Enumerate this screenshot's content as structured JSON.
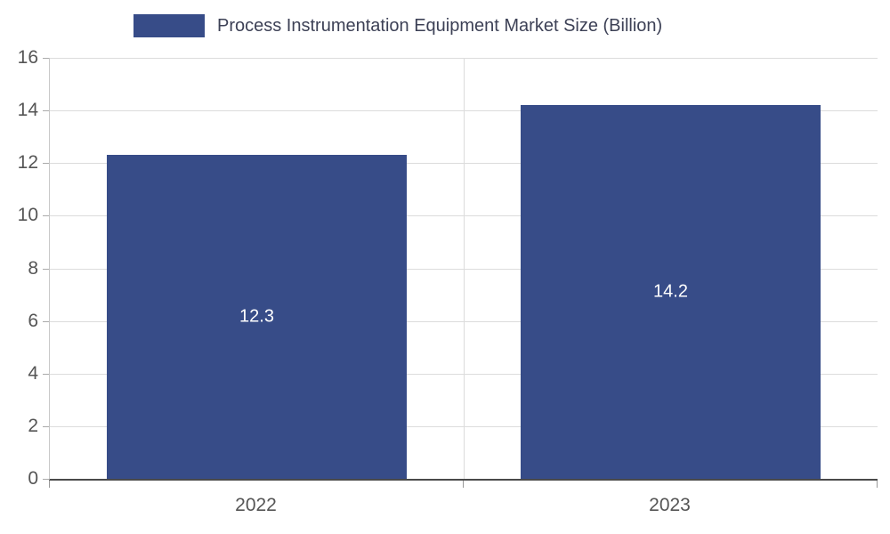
{
  "chart_data": {
    "type": "bar",
    "title": "Process Instrumentation Equipment Market Size (Billion)",
    "categories": [
      "2022",
      "2023"
    ],
    "values": [
      12.3,
      14.2
    ],
    "value_labels": [
      "12.3",
      "14.2"
    ],
    "xlabel": "",
    "ylabel": "",
    "ylim": [
      0,
      16
    ],
    "ytick_step": 2,
    "ytick_labels": [
      "0",
      "2",
      "4",
      "6",
      "8",
      "10",
      "12",
      "14",
      "16"
    ],
    "grid": true,
    "legend_position": "top",
    "bar_color": "#374C88",
    "bar_label_color": "#ffffff",
    "gridline_color": "#dcdcdc",
    "tick_label_color": "#555555"
  }
}
